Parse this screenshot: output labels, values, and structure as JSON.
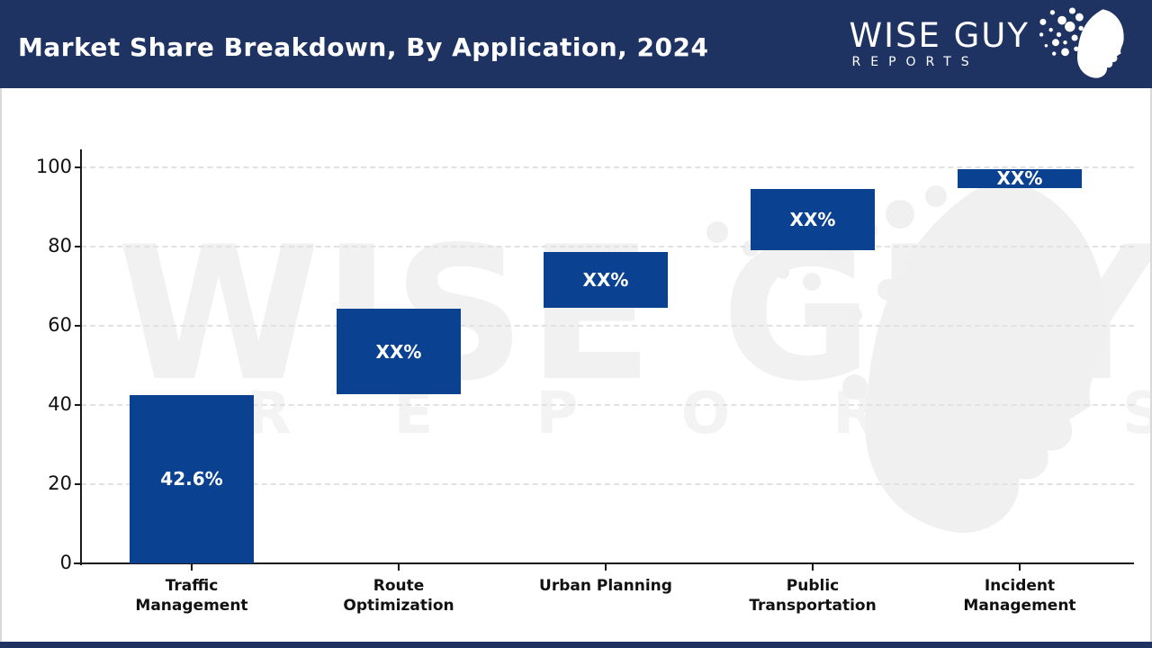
{
  "header": {
    "title": "Market Share Breakdown, By Application, 2024",
    "background_color": "#1f3363",
    "logo": {
      "line1": "WISE GUY",
      "line2": "REPORTS"
    }
  },
  "watermark": {
    "line1": "WISE GUY",
    "line2": "R E P O R T S"
  },
  "footer": {
    "bar_color": "#1f3363"
  },
  "chart_data": {
    "type": "bar",
    "subtype": "waterfall",
    "title": "Market Share Breakdown, By Application, 2024",
    "categories": [
      "Traffic Management",
      "Route Optimization",
      "Urban Planning",
      "Public Transportation",
      "Incident Management"
    ],
    "segments": [
      {
        "category": "Traffic Management",
        "base": 0,
        "top": 42.6,
        "label": "42.6%"
      },
      {
        "category": "Route Optimization",
        "base": 42.7,
        "top": 64.3,
        "label": "XX%"
      },
      {
        "category": "Urban Planning",
        "base": 64.5,
        "top": 78.7,
        "label": "XX%"
      },
      {
        "category": "Public Transportation",
        "base": 79.1,
        "top": 94.6,
        "label": "XX%"
      },
      {
        "category": "Incident Management",
        "base": 94.8,
        "top": 99.6,
        "label": "XX%"
      }
    ],
    "yticks": [
      0,
      20,
      40,
      60,
      80,
      100
    ],
    "ylim": [
      0,
      104.5
    ],
    "xlabel": "",
    "ylabel": "",
    "grid": "horizontal-dashed",
    "legend": "none",
    "bar_color": "#0a4190",
    "bar_label_color": "#ffffff",
    "axis_color": "#1a1a1a"
  }
}
